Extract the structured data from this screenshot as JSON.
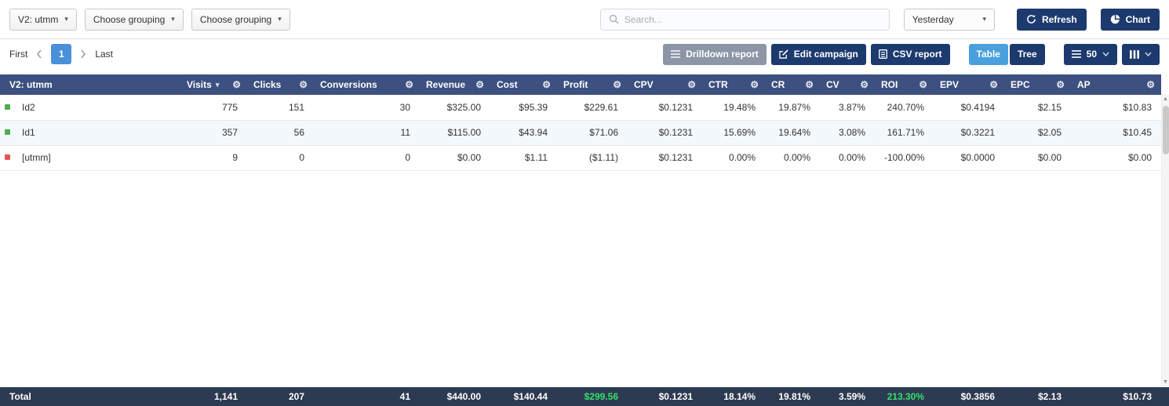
{
  "toolbar": {
    "campaign_select": "V2: utmm",
    "grouping_select_1": "Choose grouping",
    "grouping_select_2": "Choose grouping",
    "search_placeholder": "Search...",
    "date_range": "Yesterday",
    "refresh": "Refresh",
    "chart": "Chart"
  },
  "pagination": {
    "first": "First",
    "current_page": "1",
    "last": "Last"
  },
  "actions": {
    "drilldown": "Drilldown report",
    "edit_campaign": "Edit campaign",
    "csv": "CSV report",
    "table_view": "Table",
    "tree_view": "Tree",
    "rows_per_page": "50"
  },
  "table": {
    "columns": [
      {
        "label": "V2: utmm",
        "gear": false,
        "sort": false
      },
      {
        "label": "Visits",
        "gear": true,
        "sort": true
      },
      {
        "label": "Clicks",
        "gear": true,
        "sort": false
      },
      {
        "label": "Conversions",
        "gear": true,
        "sort": false
      },
      {
        "label": "Revenue",
        "gear": true,
        "sort": false
      },
      {
        "label": "Cost",
        "gear": true,
        "sort": false
      },
      {
        "label": "Profit",
        "gear": true,
        "sort": false
      },
      {
        "label": "CPV",
        "gear": true,
        "sort": false
      },
      {
        "label": "CTR",
        "gear": true,
        "sort": false
      },
      {
        "label": "CR",
        "gear": true,
        "sort": false
      },
      {
        "label": "CV",
        "gear": true,
        "sort": false
      },
      {
        "label": "ROI",
        "gear": true,
        "sort": false
      },
      {
        "label": "EPV",
        "gear": true,
        "sort": false
      },
      {
        "label": "EPC",
        "gear": true,
        "sort": false
      },
      {
        "label": "AP",
        "gear": true,
        "sort": false
      }
    ],
    "rows": [
      {
        "status": "green",
        "name": "Id2",
        "visits": "775",
        "clicks": "151",
        "conversions": "30",
        "revenue": "$325.00",
        "cost": "$95.39",
        "profit": "$229.61",
        "cpv": "$0.1231",
        "ctr": "19.48%",
        "cr": "19.87%",
        "cv": "3.87%",
        "roi": "240.70%",
        "epv": "$0.4194",
        "epc": "$2.15",
        "ap": "$10.83"
      },
      {
        "status": "green",
        "name": "Id1",
        "visits": "357",
        "clicks": "56",
        "conversions": "11",
        "revenue": "$115.00",
        "cost": "$43.94",
        "profit": "$71.06",
        "cpv": "$0.1231",
        "ctr": "15.69%",
        "cr": "19.64%",
        "cv": "3.08%",
        "roi": "161.71%",
        "epv": "$0.3221",
        "epc": "$2.05",
        "ap": "$10.45"
      },
      {
        "status": "red",
        "name": "[utmm]",
        "visits": "9",
        "clicks": "0",
        "conversions": "0",
        "revenue": "$0.00",
        "cost": "$1.11",
        "profit": "($1.11)",
        "cpv": "$0.1231",
        "ctr": "0.00%",
        "cr": "0.00%",
        "cv": "0.00%",
        "roi": "-100.00%",
        "epv": "$0.0000",
        "epc": "$0.00",
        "ap": "$0.00"
      }
    ],
    "total_label": "Total",
    "total": {
      "visits": "1,141",
      "clicks": "207",
      "conversions": "41",
      "revenue": "$440.00",
      "cost": "$140.44",
      "profit": "$299.56",
      "cpv": "$0.1231",
      "ctr": "18.14%",
      "cr": "19.81%",
      "cv": "3.59%",
      "roi": "213.30%",
      "epv": "$0.3856",
      "epc": "$2.13",
      "ap": "$10.73"
    }
  },
  "colors": {
    "navy_button": "#1d3a6e",
    "table_header": "#3c5180",
    "totals_bar": "#2c3a52",
    "accent_blue": "#4aa0dd",
    "page_active": "#4a90d9",
    "positive": "#21a351",
    "negative": "#e74c3c"
  }
}
